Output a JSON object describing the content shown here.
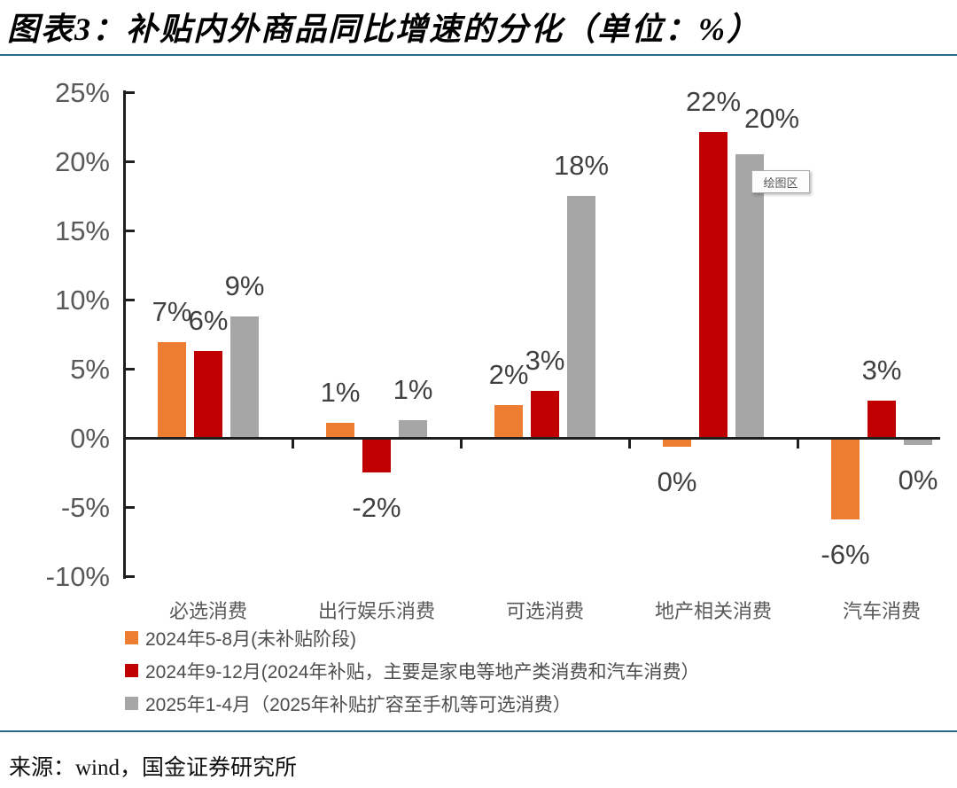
{
  "title": "图表3：补贴内外商品同比增速的分化（单位：%）",
  "source": "来源：wind，国金证券研究所",
  "colors": {
    "divider_teal": "#2A6B8C",
    "axis": "#1F1F1F",
    "axis_tick_label": "#595959",
    "data_label": "#404040",
    "legend_text": "#4D4D4D",
    "background": "#FFFFFF",
    "tooltip_border": "#ABABAB"
  },
  "chart_data": {
    "type": "bar",
    "title": "图表3：补贴内外商品同比增速的分化（单位：%）",
    "xlabel": "",
    "ylabel": "",
    "categories": [
      "必选消费",
      "出行娱乐消费",
      "可选消费",
      "地产相关消费",
      "汽车消费"
    ],
    "series": [
      {
        "name": "2024年5-8月(未补贴阶段)",
        "color": "#ED7D31",
        "values": [
          6.9,
          1.1,
          2.4,
          -0.5,
          -5.8
        ],
        "labels": [
          "7%",
          "1%",
          "2%",
          "0%",
          "-6%"
        ]
      },
      {
        "name": "2024年9-12月(2024年补贴，主要是家电等地产类消费和汽车消费）",
        "color": "#C00000",
        "values": [
          6.3,
          -2.4,
          3.4,
          22.1,
          2.7
        ],
        "labels": [
          "6%",
          "-2%",
          "3%",
          "22%",
          "3%"
        ]
      },
      {
        "name": "2025年1-4月（2025年补贴扩容至手机等可选消费）",
        "color": "#A6A6A6",
        "values": [
          8.8,
          1.3,
          17.5,
          20.5,
          -0.4
        ],
        "labels": [
          "9%",
          "1%",
          "18%",
          "20%",
          "0%"
        ]
      }
    ],
    "ylim": [
      -10,
      25
    ],
    "ytick_step": 5,
    "ytick_labels": [
      "25%",
      "20%",
      "15%",
      "10%",
      "5%",
      "0%",
      "-5%",
      "-10%"
    ],
    "grid": false,
    "legend_position": "bottom-left",
    "plot_area_tooltip": "绘图区",
    "label_offsets": {
      "3_2": {
        "dx": 25,
        "dy": -6
      }
    }
  }
}
